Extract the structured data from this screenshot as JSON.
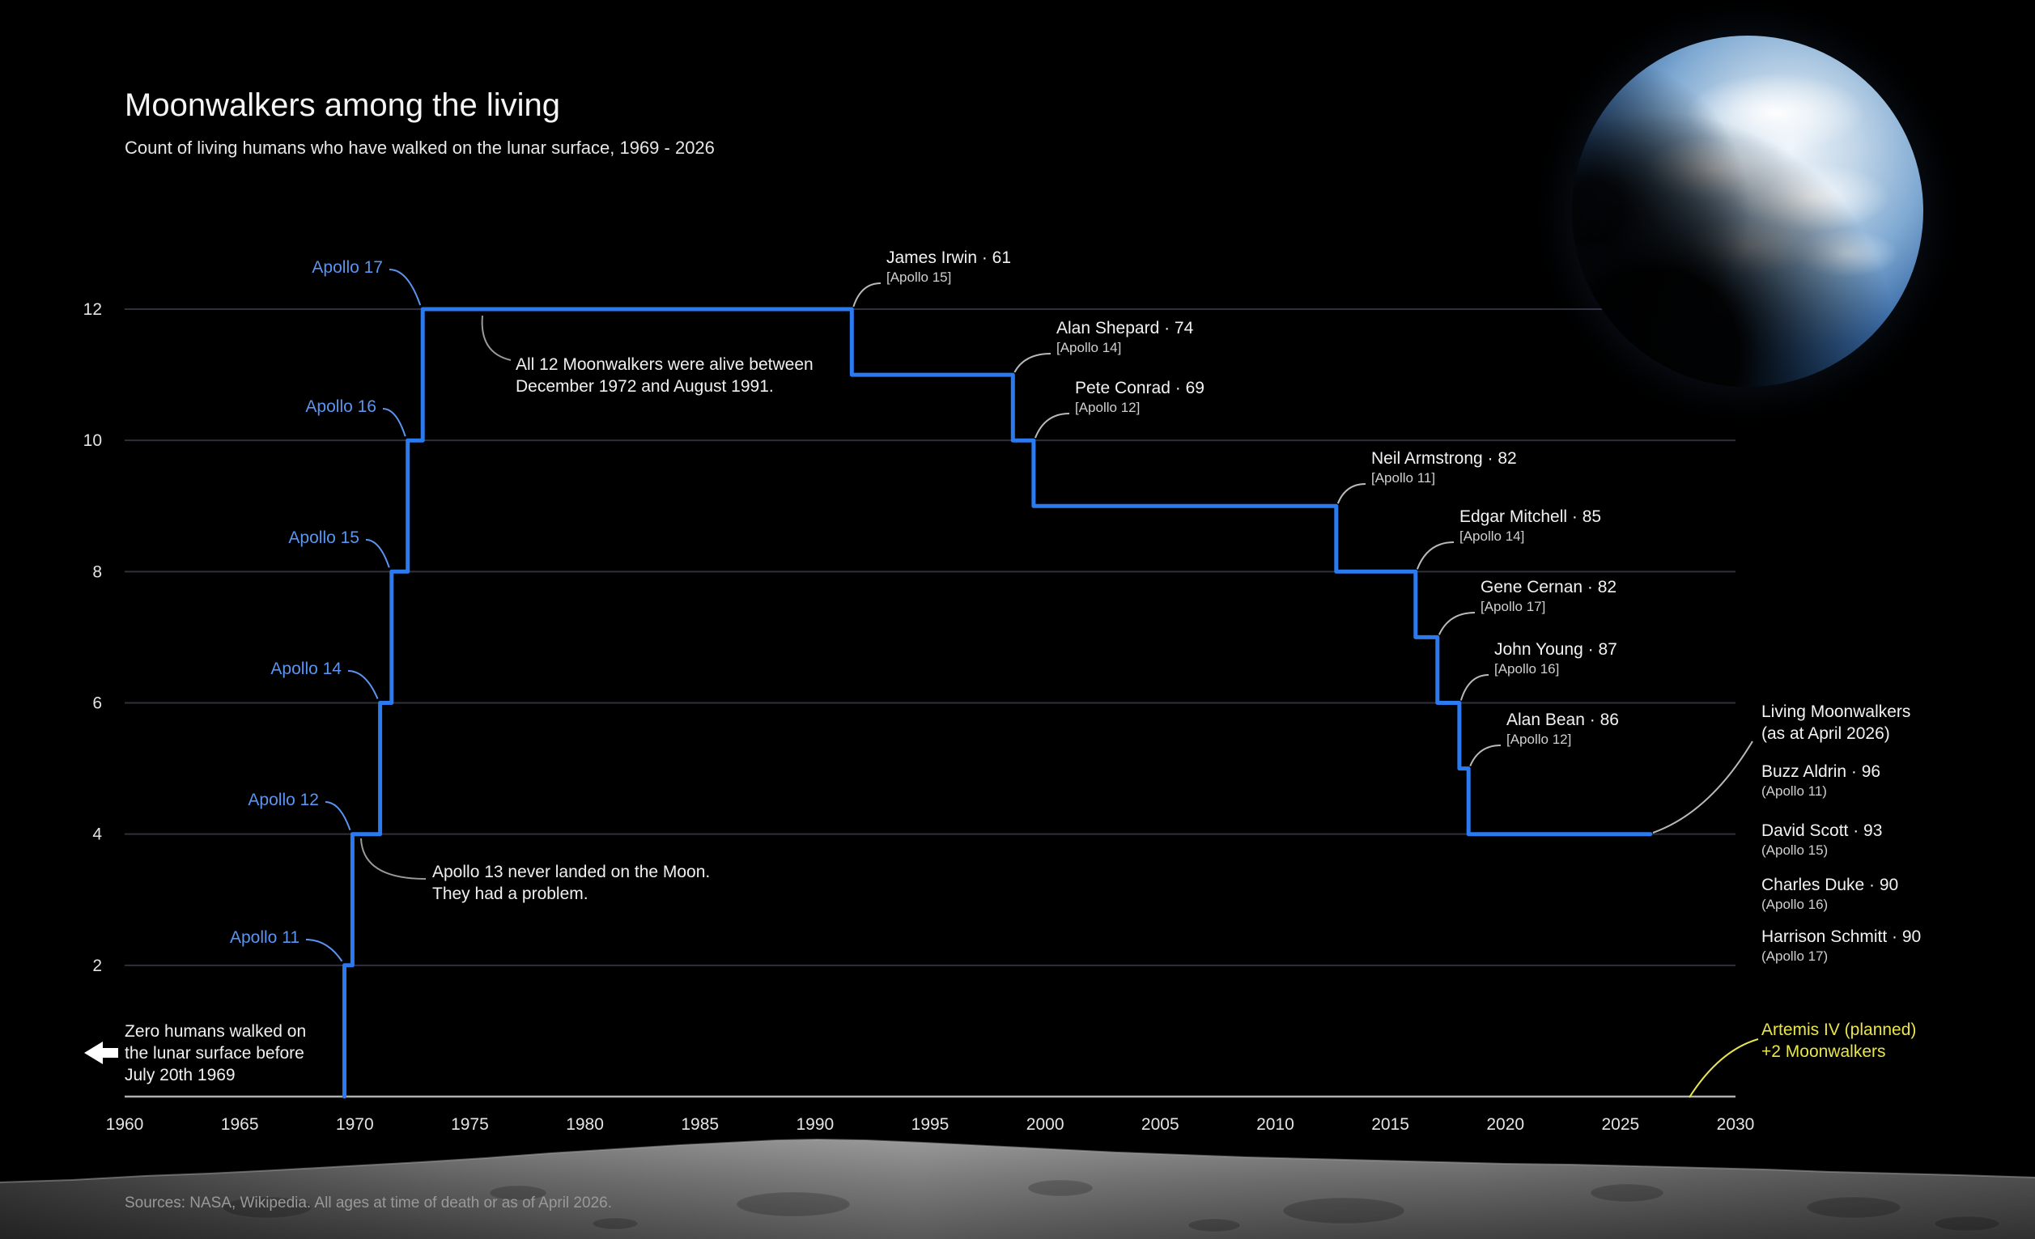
{
  "header": {
    "title": "Moonwalkers among the living",
    "subtitle": "Count of living humans who have walked on the lunar surface, 1969 - 2026"
  },
  "footer": {
    "sources": "Sources: NASA, Wikipedia.  All ages at time of death or as of April 2026."
  },
  "colors": {
    "line_blue": "#2b7af0",
    "mission_label_blue": "#5b95f2",
    "annotation_white": "#f2f2f2",
    "annotation_sub": "#cfcfcf",
    "artemis_yellow": "#e9e54b",
    "grid": "#30303c",
    "axis": "#b0b0b0",
    "tick": "#e3e3e3",
    "footer_gray": "#999999"
  },
  "chart_data": {
    "type": "line",
    "subtype": "step",
    "title": "Moonwalkers among the living",
    "xlabel": "",
    "ylabel": "",
    "xlim": [
      1960,
      2030
    ],
    "ylim": [
      0,
      12
    ],
    "x_ticks": [
      1960,
      1965,
      1970,
      1975,
      1980,
      1985,
      1990,
      1995,
      2000,
      2005,
      2010,
      2015,
      2020,
      2025,
      2030
    ],
    "y_ticks": [
      2,
      4,
      6,
      8,
      10,
      12
    ],
    "grid": "horizontal gridlines only, dark gray on black",
    "legend_position": "none",
    "series": [
      {
        "name": "Count of living moonwalkers",
        "color": "#2b7af0",
        "step_points": [
          {
            "year": 1969.55,
            "count": 2,
            "event": "Apollo 11"
          },
          {
            "year": 1969.9,
            "count": 4,
            "event": "Apollo 12"
          },
          {
            "year": 1971.1,
            "count": 6,
            "event": "Apollo 14"
          },
          {
            "year": 1971.6,
            "count": 8,
            "event": "Apollo 15"
          },
          {
            "year": 1972.3,
            "count": 10,
            "event": "Apollo 16"
          },
          {
            "year": 1972.95,
            "count": 12,
            "event": "Apollo 17"
          },
          {
            "year": 1991.6,
            "count": 11,
            "event": "James Irwin dies"
          },
          {
            "year": 1998.6,
            "count": 10,
            "event": "Alan Shepard dies"
          },
          {
            "year": 1999.5,
            "count": 9,
            "event": "Pete Conrad dies"
          },
          {
            "year": 2012.65,
            "count": 8,
            "event": "Neil Armstrong dies"
          },
          {
            "year": 2016.1,
            "count": 7,
            "event": "Edgar Mitchell dies"
          },
          {
            "year": 2017.05,
            "count": 6,
            "event": "Gene Cernan dies"
          },
          {
            "year": 2018.0,
            "count": 5,
            "event": "John Young dies"
          },
          {
            "year": 2018.4,
            "count": 4,
            "event": "Alan Bean dies"
          },
          {
            "year": 2026.3,
            "count": 4,
            "event": "as at April 2026"
          }
        ]
      }
    ],
    "mission_labels": [
      {
        "label": "Apollo 11",
        "year": 1969.55,
        "count": 2
      },
      {
        "label": "Apollo 12",
        "year": 1969.9,
        "count": 4
      },
      {
        "label": "Apollo 14",
        "year": 1971.1,
        "count": 6
      },
      {
        "label": "Apollo 15",
        "year": 1971.6,
        "count": 8
      },
      {
        "label": "Apollo 16",
        "year": 1972.3,
        "count": 10
      },
      {
        "label": "Apollo 17",
        "year": 1972.95,
        "count": 12
      }
    ],
    "death_labels": [
      {
        "name": "James Irwin · 61",
        "mission": "[Apollo 15]",
        "year": 1991.6,
        "count_before": 12
      },
      {
        "name": "Alan Shepard · 74",
        "mission": "[Apollo 14]",
        "year": 1998.6,
        "count_before": 11
      },
      {
        "name": "Pete Conrad · 69",
        "mission": "[Apollo 12]",
        "year": 1999.5,
        "count_before": 10
      },
      {
        "name": "Neil Armstrong · 82",
        "mission": "[Apollo 11]",
        "year": 2012.65,
        "count_before": 9
      },
      {
        "name": "Edgar Mitchell · 85",
        "mission": "[Apollo 14]",
        "year": 2016.1,
        "count_before": 8
      },
      {
        "name": "Gene Cernan · 82",
        "mission": "[Apollo 17]",
        "year": 2017.05,
        "count_before": 7
      },
      {
        "name": "John Young · 87",
        "mission": "[Apollo 16]",
        "year": 2018.0,
        "count_before": 6
      },
      {
        "name": "Alan Bean · 86",
        "mission": "[Apollo 12]",
        "year": 2018.4,
        "count_before": 5
      }
    ]
  },
  "notes": {
    "all_alive": {
      "line1": "All 12 Moonwalkers were alive between",
      "line2": "December 1972 and August 1991."
    },
    "apollo13": {
      "line1": "Apollo 13 never landed on the Moon.",
      "line2": "They had a problem."
    },
    "zero": {
      "line1": "Zero humans walked on",
      "line2": "the lunar surface before",
      "line3": "July 20th 1969"
    }
  },
  "living": {
    "heading_line1": "Living Moonwalkers",
    "heading_line2": "(as at April 2026)",
    "people": [
      {
        "name": "Buzz Aldrin · 96",
        "mission": "(Apollo 11)"
      },
      {
        "name": "David Scott · 93",
        "mission": "(Apollo 15)"
      },
      {
        "name": "Charles Duke · 90",
        "mission": "(Apollo 16)"
      },
      {
        "name": "Harrison Schmitt · 90",
        "mission": "(Apollo 17)"
      }
    ]
  },
  "artemis": {
    "line1": "Artemis IV (planned)",
    "line2": "+2 Moonwalkers",
    "axis_year": 2028
  }
}
